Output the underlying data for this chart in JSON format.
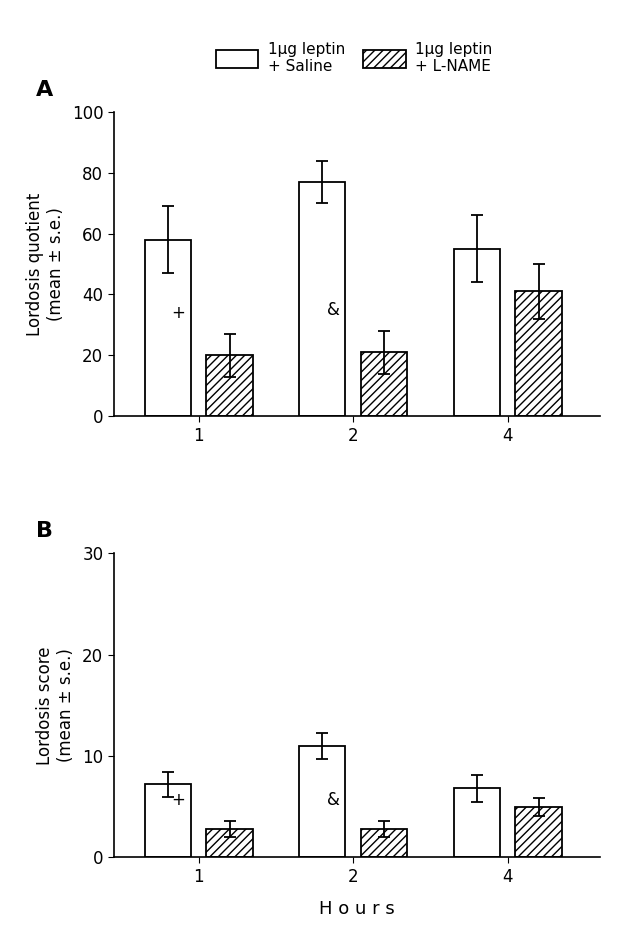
{
  "panel_A": {
    "hours": [
      1,
      2,
      4
    ],
    "saline_means": [
      58,
      77,
      55
    ],
    "saline_errors": [
      11,
      7,
      11
    ],
    "lname_means": [
      20,
      21,
      41
    ],
    "lname_errors": [
      7,
      7,
      9
    ],
    "ylim": [
      0,
      100
    ],
    "yticks": [
      0,
      20,
      40,
      60,
      80,
      100
    ],
    "ylabel": "Lordosis quotient\n(mean ± s.e.)",
    "ann_hours": [
      1,
      2
    ],
    "ann_texts": [
      "+",
      "&"
    ]
  },
  "panel_B": {
    "hours": [
      1,
      2,
      4
    ],
    "saline_means": [
      7.2,
      11.0,
      6.8
    ],
    "saline_errors": [
      1.2,
      1.3,
      1.3
    ],
    "lname_means": [
      2.8,
      2.8,
      5.0
    ],
    "lname_errors": [
      0.8,
      0.8,
      0.9
    ],
    "ylim": [
      0,
      30
    ],
    "yticks": [
      0,
      10,
      20,
      30
    ],
    "ylabel": "Lordosis score\n(mean ± s.e.)",
    "ann_hours": [
      1,
      2
    ],
    "ann_texts": [
      "+",
      "&"
    ]
  },
  "xlabel": "H o u r s",
  "legend_saline": "1μg leptin\n+ Saline",
  "legend_lname": "1μg leptin\n+ L-NAME",
  "bar_width": 0.3,
  "saline_color": "#ffffff",
  "edge_color": "#000000",
  "hatch_pattern": "////"
}
